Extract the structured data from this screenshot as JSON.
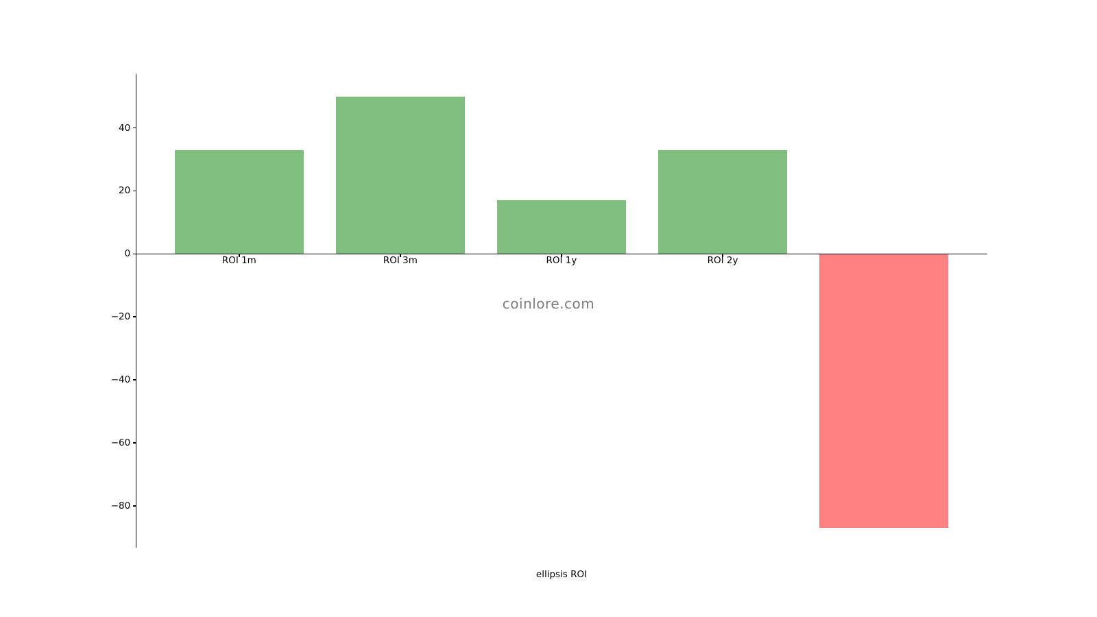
{
  "watermark": {
    "text": "coinlore.com",
    "color": "#7b7b7b"
  },
  "chart_data": {
    "type": "bar",
    "title": "",
    "xlabel": "ellipsis ROI",
    "ylabel": "",
    "categories": [
      "ROI 1m",
      "ROI 3m",
      "ROI 1y",
      "ROI 2y",
      ""
    ],
    "values": [
      33,
      50,
      17,
      33,
      -87
    ],
    "bar_colors": [
      "#80bf80",
      "#80bf80",
      "#80bf80",
      "#80bf80",
      "#ff8080"
    ],
    "positive_color": "#80bf80",
    "negative_color": "#ff8080",
    "axis_color": "#000000",
    "y_tick_values": [
      40,
      20,
      0,
      -20,
      -40,
      -60,
      -80
    ],
    "y_tick_labels": [
      "40",
      "20",
      "0",
      "−20",
      "−40",
      "−60",
      "−80"
    ],
    "ylim": [
      -93.2,
      57.2
    ],
    "xlim": [
      -0.64,
      4.64
    ],
    "bar_width_fraction": 0.8,
    "grid": false,
    "legend": null,
    "last_category_label_hidden": true
  }
}
